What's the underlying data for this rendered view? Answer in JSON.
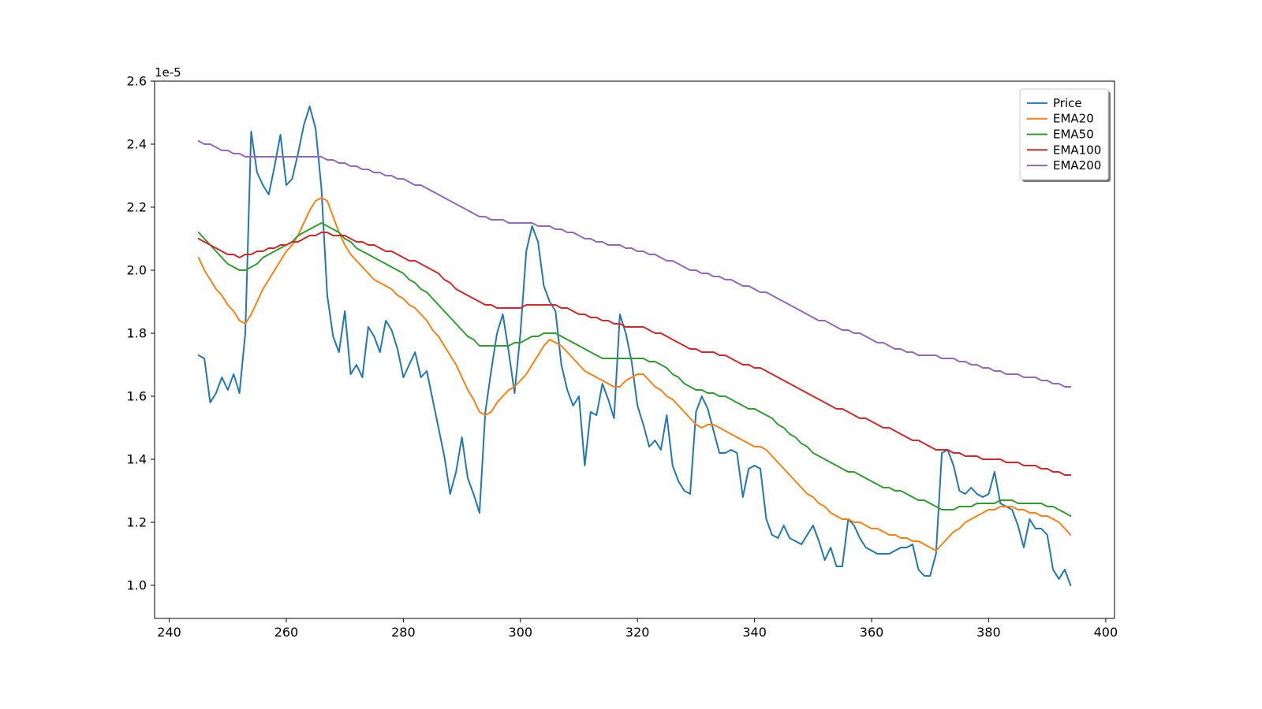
{
  "figure": {
    "background": "#ffffff"
  },
  "chart_data": {
    "type": "line",
    "title": "",
    "xlabel": "",
    "ylabel": "",
    "y_offset_label": "1e-5",
    "values_scale": "1e-5",
    "grid": false,
    "legend_position": "upper right",
    "legend_labels": [
      "Price",
      "EMA20",
      "EMA50",
      "EMA100",
      "EMA200"
    ],
    "x_ticks": [
      240,
      260,
      280,
      300,
      320,
      340,
      360,
      380,
      400
    ],
    "y_ticks": [
      1.0,
      1.2,
      1.4,
      1.6,
      1.8,
      2.0,
      2.2,
      2.4,
      2.6
    ],
    "xlim": [
      237.5,
      401.5
    ],
    "ylim": [
      0.895,
      2.6
    ],
    "x": [
      245,
      246,
      247,
      248,
      249,
      250,
      251,
      252,
      253,
      254,
      255,
      256,
      257,
      258,
      259,
      260,
      261,
      262,
      263,
      264,
      265,
      266,
      267,
      268,
      269,
      270,
      271,
      272,
      273,
      274,
      275,
      276,
      277,
      278,
      279,
      280,
      281,
      282,
      283,
      284,
      285,
      286,
      287,
      288,
      289,
      290,
      291,
      292,
      293,
      294,
      295,
      296,
      297,
      298,
      299,
      300,
      301,
      302,
      303,
      304,
      305,
      306,
      307,
      308,
      309,
      310,
      311,
      312,
      313,
      314,
      315,
      316,
      317,
      318,
      319,
      320,
      321,
      322,
      323,
      324,
      325,
      326,
      327,
      328,
      329,
      330,
      331,
      332,
      333,
      334,
      335,
      336,
      337,
      338,
      339,
      340,
      341,
      342,
      343,
      344,
      345,
      346,
      347,
      348,
      349,
      350,
      351,
      352,
      353,
      354,
      355,
      356,
      357,
      358,
      359,
      360,
      361,
      362,
      363,
      364,
      365,
      366,
      367,
      368,
      369,
      370,
      371,
      372,
      373,
      374,
      375,
      376,
      377,
      378,
      379,
      380,
      381,
      382,
      383,
      384,
      385,
      386,
      387,
      388,
      389,
      390,
      391,
      392,
      393,
      394
    ],
    "series": [
      {
        "name": "Price",
        "color": "#1f77b4",
        "values": [
          1.73,
          1.72,
          1.58,
          1.61,
          1.66,
          1.62,
          1.67,
          1.61,
          1.8,
          2.44,
          2.31,
          2.27,
          2.24,
          2.33,
          2.43,
          2.27,
          2.29,
          2.37,
          2.46,
          2.52,
          2.45,
          2.26,
          1.92,
          1.79,
          1.74,
          1.87,
          1.67,
          1.7,
          1.66,
          1.82,
          1.79,
          1.74,
          1.84,
          1.81,
          1.75,
          1.66,
          1.7,
          1.74,
          1.66,
          1.68,
          1.59,
          1.5,
          1.41,
          1.29,
          1.36,
          1.47,
          1.34,
          1.29,
          1.23,
          1.55,
          1.68,
          1.8,
          1.86,
          1.74,
          1.61,
          1.8,
          2.06,
          2.14,
          2.09,
          1.95,
          1.9,
          1.87,
          1.7,
          1.62,
          1.57,
          1.6,
          1.38,
          1.55,
          1.54,
          1.64,
          1.59,
          1.53,
          1.86,
          1.8,
          1.71,
          1.57,
          1.51,
          1.44,
          1.46,
          1.43,
          1.54,
          1.38,
          1.33,
          1.3,
          1.29,
          1.55,
          1.6,
          1.56,
          1.49,
          1.42,
          1.42,
          1.43,
          1.42,
          1.28,
          1.37,
          1.38,
          1.37,
          1.21,
          1.16,
          1.15,
          1.19,
          1.15,
          1.14,
          1.13,
          1.16,
          1.19,
          1.14,
          1.08,
          1.12,
          1.06,
          1.06,
          1.21,
          1.19,
          1.15,
          1.12,
          1.11,
          1.1,
          1.1,
          1.1,
          1.11,
          1.12,
          1.12,
          1.13,
          1.05,
          1.03,
          1.03,
          1.1,
          1.42,
          1.43,
          1.38,
          1.3,
          1.29,
          1.31,
          1.29,
          1.28,
          1.29,
          1.36,
          1.26,
          1.25,
          1.24,
          1.19,
          1.12,
          1.21,
          1.18,
          1.18,
          1.16,
          1.05,
          1.02,
          1.05,
          1.0
        ]
      },
      {
        "name": "EMA20",
        "color": "#ff7f0e",
        "values": [
          2.04,
          2.0,
          1.97,
          1.94,
          1.92,
          1.89,
          1.87,
          1.84,
          1.83,
          1.86,
          1.9,
          1.94,
          1.97,
          2.0,
          2.03,
          2.06,
          2.08,
          2.11,
          2.15,
          2.19,
          2.22,
          2.23,
          2.22,
          2.17,
          2.12,
          2.08,
          2.05,
          2.03,
          2.01,
          1.99,
          1.97,
          1.96,
          1.95,
          1.94,
          1.92,
          1.91,
          1.89,
          1.88,
          1.86,
          1.84,
          1.81,
          1.79,
          1.76,
          1.73,
          1.7,
          1.66,
          1.62,
          1.59,
          1.55,
          1.54,
          1.55,
          1.58,
          1.6,
          1.62,
          1.63,
          1.65,
          1.67,
          1.7,
          1.73,
          1.76,
          1.78,
          1.77,
          1.76,
          1.74,
          1.72,
          1.7,
          1.68,
          1.67,
          1.66,
          1.65,
          1.64,
          1.63,
          1.63,
          1.65,
          1.66,
          1.67,
          1.67,
          1.65,
          1.63,
          1.62,
          1.6,
          1.59,
          1.57,
          1.55,
          1.53,
          1.51,
          1.5,
          1.51,
          1.51,
          1.5,
          1.49,
          1.48,
          1.47,
          1.46,
          1.45,
          1.44,
          1.44,
          1.43,
          1.41,
          1.39,
          1.37,
          1.35,
          1.33,
          1.31,
          1.29,
          1.28,
          1.26,
          1.25,
          1.23,
          1.22,
          1.21,
          1.21,
          1.2,
          1.2,
          1.19,
          1.18,
          1.18,
          1.17,
          1.16,
          1.16,
          1.15,
          1.15,
          1.14,
          1.14,
          1.13,
          1.12,
          1.11,
          1.13,
          1.15,
          1.17,
          1.18,
          1.2,
          1.21,
          1.22,
          1.23,
          1.24,
          1.24,
          1.25,
          1.25,
          1.25,
          1.24,
          1.24,
          1.23,
          1.23,
          1.22,
          1.22,
          1.21,
          1.2,
          1.18,
          1.16
        ]
      },
      {
        "name": "EMA50",
        "color": "#2ca02c",
        "values": [
          2.12,
          2.1,
          2.08,
          2.06,
          2.04,
          2.02,
          2.01,
          2.0,
          2.0,
          2.01,
          2.02,
          2.04,
          2.05,
          2.06,
          2.07,
          2.08,
          2.09,
          2.11,
          2.12,
          2.13,
          2.14,
          2.15,
          2.14,
          2.13,
          2.12,
          2.1,
          2.09,
          2.07,
          2.06,
          2.05,
          2.04,
          2.03,
          2.02,
          2.01,
          2.0,
          1.99,
          1.97,
          1.96,
          1.94,
          1.93,
          1.91,
          1.89,
          1.87,
          1.85,
          1.83,
          1.81,
          1.79,
          1.78,
          1.76,
          1.76,
          1.76,
          1.76,
          1.76,
          1.76,
          1.77,
          1.77,
          1.78,
          1.79,
          1.79,
          1.8,
          1.8,
          1.8,
          1.79,
          1.78,
          1.77,
          1.76,
          1.75,
          1.74,
          1.73,
          1.72,
          1.72,
          1.72,
          1.72,
          1.72,
          1.72,
          1.72,
          1.72,
          1.71,
          1.71,
          1.7,
          1.69,
          1.67,
          1.66,
          1.64,
          1.63,
          1.62,
          1.62,
          1.61,
          1.61,
          1.6,
          1.6,
          1.59,
          1.58,
          1.57,
          1.56,
          1.56,
          1.55,
          1.54,
          1.53,
          1.51,
          1.5,
          1.48,
          1.47,
          1.45,
          1.44,
          1.42,
          1.41,
          1.4,
          1.39,
          1.38,
          1.37,
          1.36,
          1.36,
          1.35,
          1.34,
          1.33,
          1.32,
          1.31,
          1.31,
          1.3,
          1.3,
          1.29,
          1.28,
          1.27,
          1.27,
          1.26,
          1.25,
          1.24,
          1.24,
          1.24,
          1.25,
          1.25,
          1.25,
          1.26,
          1.26,
          1.26,
          1.26,
          1.27,
          1.27,
          1.27,
          1.26,
          1.26,
          1.26,
          1.26,
          1.26,
          1.25,
          1.25,
          1.24,
          1.23,
          1.22
        ]
      },
      {
        "name": "EMA100",
        "color": "#d62728",
        "values": [
          2.1,
          2.09,
          2.08,
          2.07,
          2.06,
          2.05,
          2.05,
          2.04,
          2.05,
          2.05,
          2.06,
          2.06,
          2.07,
          2.07,
          2.08,
          2.08,
          2.09,
          2.09,
          2.1,
          2.11,
          2.11,
          2.12,
          2.12,
          2.11,
          2.11,
          2.11,
          2.1,
          2.09,
          2.09,
          2.08,
          2.08,
          2.07,
          2.06,
          2.06,
          2.05,
          2.04,
          2.03,
          2.03,
          2.02,
          2.01,
          2.0,
          1.99,
          1.97,
          1.96,
          1.94,
          1.93,
          1.92,
          1.91,
          1.9,
          1.89,
          1.89,
          1.88,
          1.88,
          1.88,
          1.88,
          1.88,
          1.89,
          1.89,
          1.89,
          1.89,
          1.89,
          1.89,
          1.88,
          1.88,
          1.87,
          1.86,
          1.86,
          1.85,
          1.85,
          1.84,
          1.84,
          1.83,
          1.83,
          1.82,
          1.82,
          1.82,
          1.82,
          1.81,
          1.8,
          1.8,
          1.79,
          1.78,
          1.77,
          1.76,
          1.75,
          1.75,
          1.74,
          1.74,
          1.74,
          1.73,
          1.73,
          1.72,
          1.71,
          1.7,
          1.7,
          1.69,
          1.69,
          1.68,
          1.67,
          1.66,
          1.65,
          1.64,
          1.63,
          1.62,
          1.61,
          1.6,
          1.59,
          1.58,
          1.57,
          1.56,
          1.56,
          1.55,
          1.54,
          1.53,
          1.53,
          1.52,
          1.51,
          1.5,
          1.5,
          1.49,
          1.48,
          1.47,
          1.46,
          1.46,
          1.45,
          1.44,
          1.43,
          1.43,
          1.43,
          1.42,
          1.42,
          1.41,
          1.41,
          1.41,
          1.4,
          1.4,
          1.4,
          1.4,
          1.39,
          1.39,
          1.39,
          1.38,
          1.38,
          1.38,
          1.37,
          1.37,
          1.36,
          1.36,
          1.35,
          1.35
        ]
      },
      {
        "name": "EMA200",
        "color": "#9467bd",
        "values": [
          2.41,
          2.4,
          2.4,
          2.39,
          2.38,
          2.38,
          2.37,
          2.37,
          2.36,
          2.36,
          2.36,
          2.36,
          2.36,
          2.36,
          2.36,
          2.36,
          2.36,
          2.36,
          2.36,
          2.36,
          2.36,
          2.36,
          2.35,
          2.35,
          2.34,
          2.34,
          2.33,
          2.33,
          2.32,
          2.32,
          2.31,
          2.31,
          2.3,
          2.3,
          2.29,
          2.29,
          2.28,
          2.27,
          2.27,
          2.26,
          2.25,
          2.24,
          2.23,
          2.22,
          2.21,
          2.2,
          2.19,
          2.18,
          2.17,
          2.17,
          2.16,
          2.16,
          2.16,
          2.15,
          2.15,
          2.15,
          2.15,
          2.15,
          2.14,
          2.14,
          2.14,
          2.13,
          2.13,
          2.12,
          2.12,
          2.11,
          2.1,
          2.1,
          2.09,
          2.09,
          2.08,
          2.08,
          2.08,
          2.07,
          2.07,
          2.06,
          2.06,
          2.05,
          2.05,
          2.04,
          2.03,
          2.03,
          2.02,
          2.01,
          2.0,
          2.0,
          1.99,
          1.99,
          1.98,
          1.98,
          1.97,
          1.97,
          1.96,
          1.95,
          1.95,
          1.94,
          1.93,
          1.93,
          1.92,
          1.91,
          1.9,
          1.89,
          1.88,
          1.87,
          1.86,
          1.85,
          1.84,
          1.84,
          1.83,
          1.82,
          1.81,
          1.81,
          1.8,
          1.8,
          1.79,
          1.78,
          1.77,
          1.77,
          1.76,
          1.75,
          1.75,
          1.74,
          1.74,
          1.73,
          1.73,
          1.73,
          1.73,
          1.72,
          1.72,
          1.72,
          1.71,
          1.71,
          1.7,
          1.7,
          1.69,
          1.69,
          1.68,
          1.68,
          1.67,
          1.67,
          1.67,
          1.66,
          1.66,
          1.66,
          1.65,
          1.65,
          1.64,
          1.64,
          1.63,
          1.63
        ]
      }
    ]
  }
}
